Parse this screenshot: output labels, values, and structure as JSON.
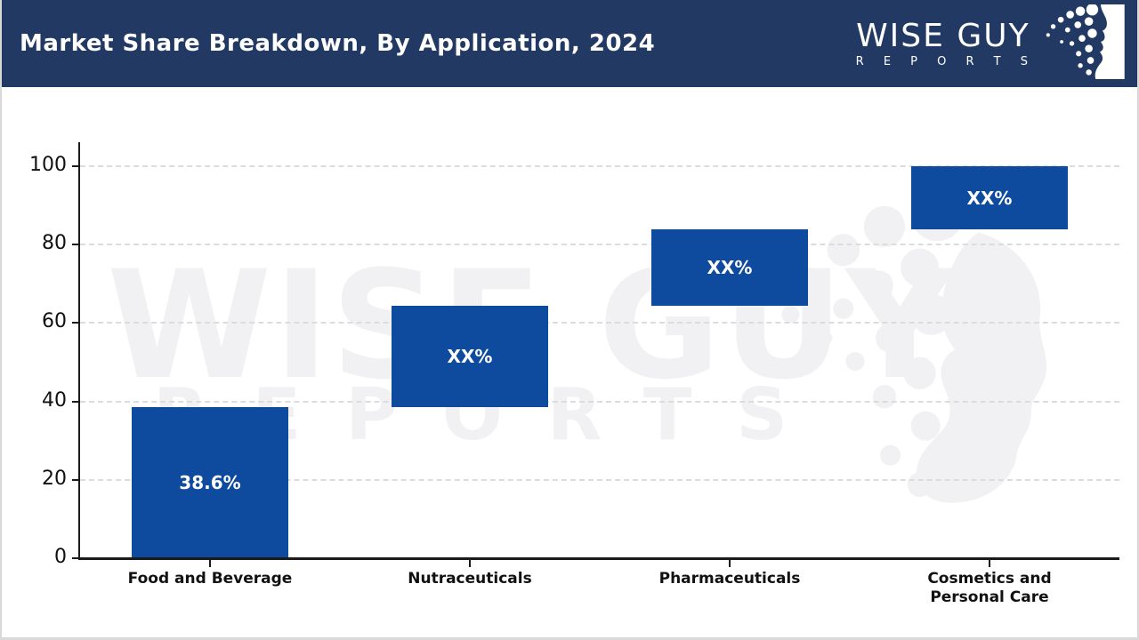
{
  "header": {
    "title": "Market Share Breakdown, By Application, 2024",
    "logo": {
      "brand": "WISE GUY",
      "subtitle": "R E P O R T S"
    }
  },
  "watermark": {
    "brand": "WISE GUY",
    "subtitle": "REPORTS"
  },
  "colors": {
    "header_bg": "#223A63",
    "bar": "#0E4A9D",
    "gridline": "#DCDCDC",
    "axis": "#1A1A1A",
    "watermark": "#F1F1F4",
    "bar_label": "#FFFFFF"
  },
  "chart_data": {
    "type": "bar",
    "subtype": "waterfall",
    "title": "Market Share Breakdown, By Application, 2024",
    "categories": [
      "Food and Beverage",
      "Nutraceuticals",
      "Pharmaceuticals",
      "Cosmetics and Personal Care"
    ],
    "segments": [
      {
        "category": "Food and Beverage",
        "start": 0,
        "end": 38.6,
        "label": "38.6%"
      },
      {
        "category": "Nutraceuticals",
        "start": 38.6,
        "end": 64.4,
        "label": "XX%"
      },
      {
        "category": "Pharmaceuticals",
        "start": 64.4,
        "end": 83.9,
        "label": "XX%"
      },
      {
        "category": "Cosmetics and Personal Care",
        "start": 83.9,
        "end": 100,
        "label": "XX%"
      }
    ],
    "xlabel": "",
    "ylabel": "",
    "ylim": [
      0,
      100
    ],
    "yticks": [
      0,
      20,
      40,
      60,
      80,
      100
    ],
    "grid": "horizontal-dashed",
    "legend": "none"
  }
}
